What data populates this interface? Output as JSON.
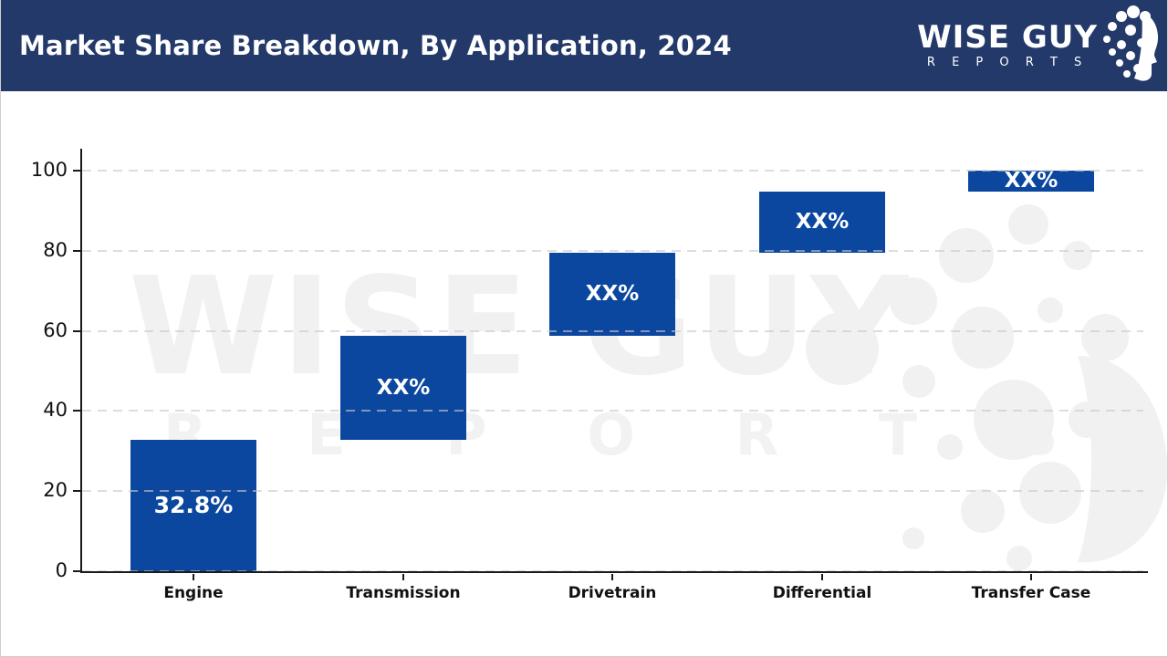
{
  "header": {
    "title": "Market Share Breakdown, By Application, 2024",
    "logo": {
      "line1": "WISE GUY",
      "line2": "R E P O R T S"
    }
  },
  "watermark": {
    "line1": "WISE GUY",
    "line2": "R E P O R T S"
  },
  "chart_data": {
    "type": "bar",
    "subtype": "waterfall",
    "title": "Market Share Breakdown, By Application, 2024",
    "categories": [
      "Engine",
      "Transmission",
      "Drivetrain",
      "Differential",
      "Transfer Case"
    ],
    "bars": [
      {
        "category": "Engine",
        "start": 0,
        "end": 32.8,
        "label": "32.8%"
      },
      {
        "category": "Transmission",
        "start": 32.8,
        "end": 58.8,
        "label": "XX%"
      },
      {
        "category": "Drivetrain",
        "start": 58.8,
        "end": 79.5,
        "label": "XX%"
      },
      {
        "category": "Differential",
        "start": 79.5,
        "end": 94.8,
        "label": "XX%"
      },
      {
        "category": "Transfer Case",
        "start": 94.8,
        "end": 100,
        "label": "XX%"
      }
    ],
    "ylim": [
      0,
      100
    ],
    "yticks": [
      0,
      20,
      40,
      60,
      80,
      100
    ],
    "xlabel": "",
    "ylabel": "",
    "grid": "horizontal-dashed",
    "legend": "none",
    "bar_color": "#0B479E",
    "bar_label_color": "#FFFFFF",
    "axis_color": "#1A1A1A",
    "gridline_color": "#D9D9D9"
  },
  "colors": {
    "header_bg": "#22396A",
    "bar_blue": "#0B479E",
    "watermark_gray": "#F1F1F1"
  }
}
